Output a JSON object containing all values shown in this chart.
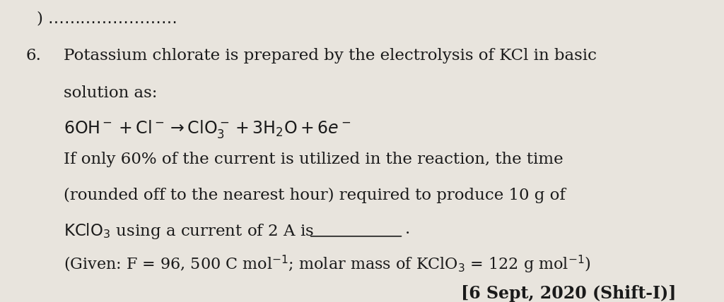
{
  "background_color": "#e8e4dd",
  "top_partial_text": ") ……………………………",
  "title_number": "6.",
  "line1": "Potassium chlorate is prepared by the electrolysis of KCl in basic",
  "line2": "solution as:",
  "para1": "If only 60% of the current is utilized in the reaction, the time",
  "para2": "(rounded off to the nearest hour) required to produce 10 g of",
  "para3_pre": "KClO₃ using a current of 2 A is",
  "para3_post": ".",
  "given": "(Given: F = 96, 500 C mol⁻¹; molar mass of KClO₃ = 122 g mol⁻¹)",
  "source": "[6 Sept, 2020 (Shift-I)]",
  "text_color": "#1a1a1a",
  "font_size_main": 16.5,
  "font_size_eq": 17,
  "font_size_source": 17
}
